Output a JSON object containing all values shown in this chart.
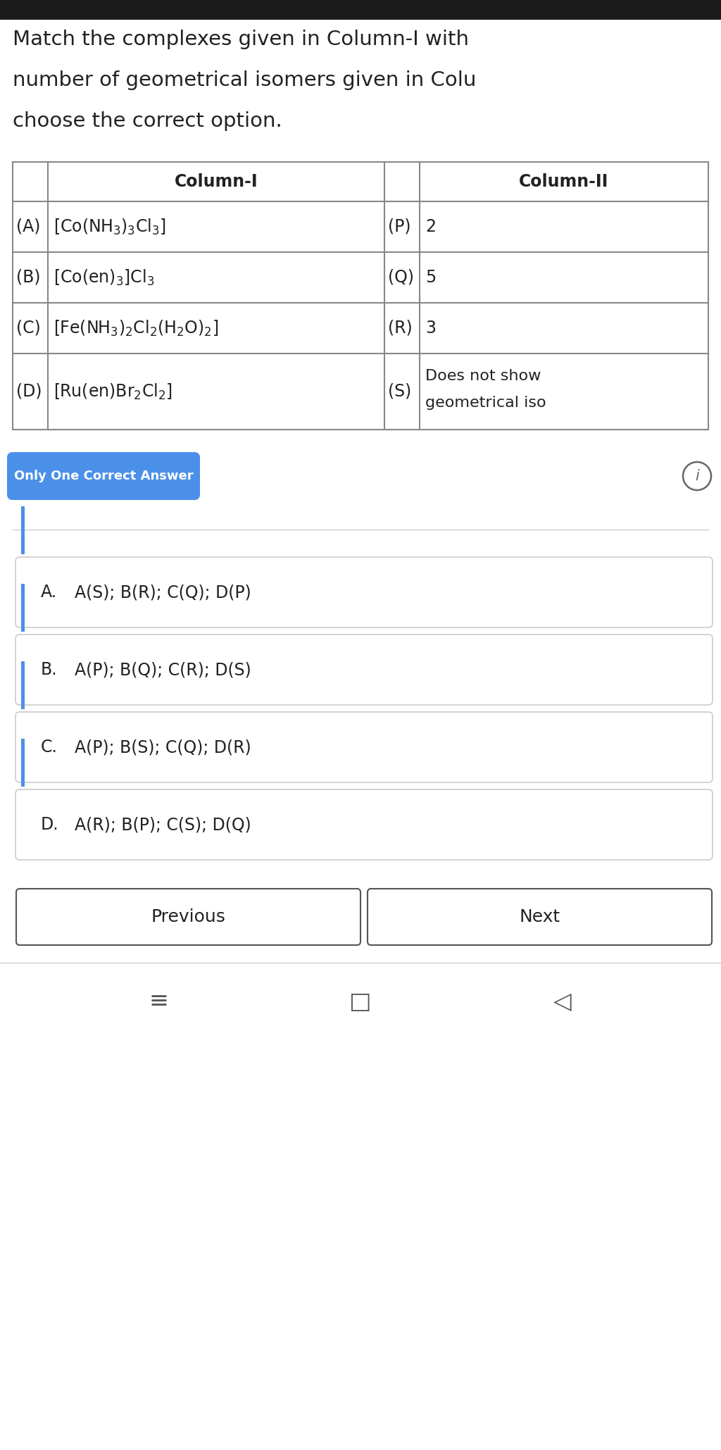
{
  "bg_color": "#ffffff",
  "top_bar_color": "#1a1a1a",
  "title_lines": [
    "Match the complexes given in Column-I with",
    "number of geometrical isomers given in Colu",
    "choose the correct option."
  ],
  "col1_header": "Column-I",
  "col2_header": "Column-II",
  "table_rows": [
    {
      "left_label": "(A)",
      "left_text": "[Co(NH$_3$)$_3$Cl$_3$]",
      "right_label": "(P)",
      "right_text": "2"
    },
    {
      "left_label": "(B)",
      "left_text": "[Co(en)$_3$]Cl$_3$",
      "right_label": "(Q)",
      "right_text": "5"
    },
    {
      "left_label": "(C)",
      "left_text": "[Fe(NH$_3$)$_2$Cl$_2$(H$_2$O)$_2$]",
      "right_label": "(R)",
      "right_text": "3"
    },
    {
      "left_label": "(D)",
      "left_text": "[Ru(en)Br$_2$Cl$_2$]",
      "right_label": "(S)",
      "right_text": "Does not show\ngeometrical iso"
    }
  ],
  "button_label": "Only One Correct Answer",
  "button_color": "#4a90e8",
  "button_text_color": "#ffffff",
  "options": [
    {
      "label": "A.",
      "text": "A(S); B(R); C(Q); D(P)"
    },
    {
      "label": "B.",
      "text": "A(P); B(Q); C(R); D(S)"
    },
    {
      "label": "C.",
      "text": "A(P); B(S); C(Q); D(R)"
    },
    {
      "label": "D.",
      "text": "A(R); B(P); C(S); D(Q)"
    }
  ],
  "prev_button": "Previous",
  "next_button": "Next",
  "nav_icons": [
    "≡",
    "□",
    "◁"
  ],
  "text_color": "#222222",
  "table_border_color": "#888888",
  "option_border_color": "#cccccc",
  "option_left_bar_color": "#4a90e8",
  "nav_bar_color": "#eeeeee",
  "title_fontsize": 21,
  "table_fontsize": 17,
  "option_fontsize": 17
}
